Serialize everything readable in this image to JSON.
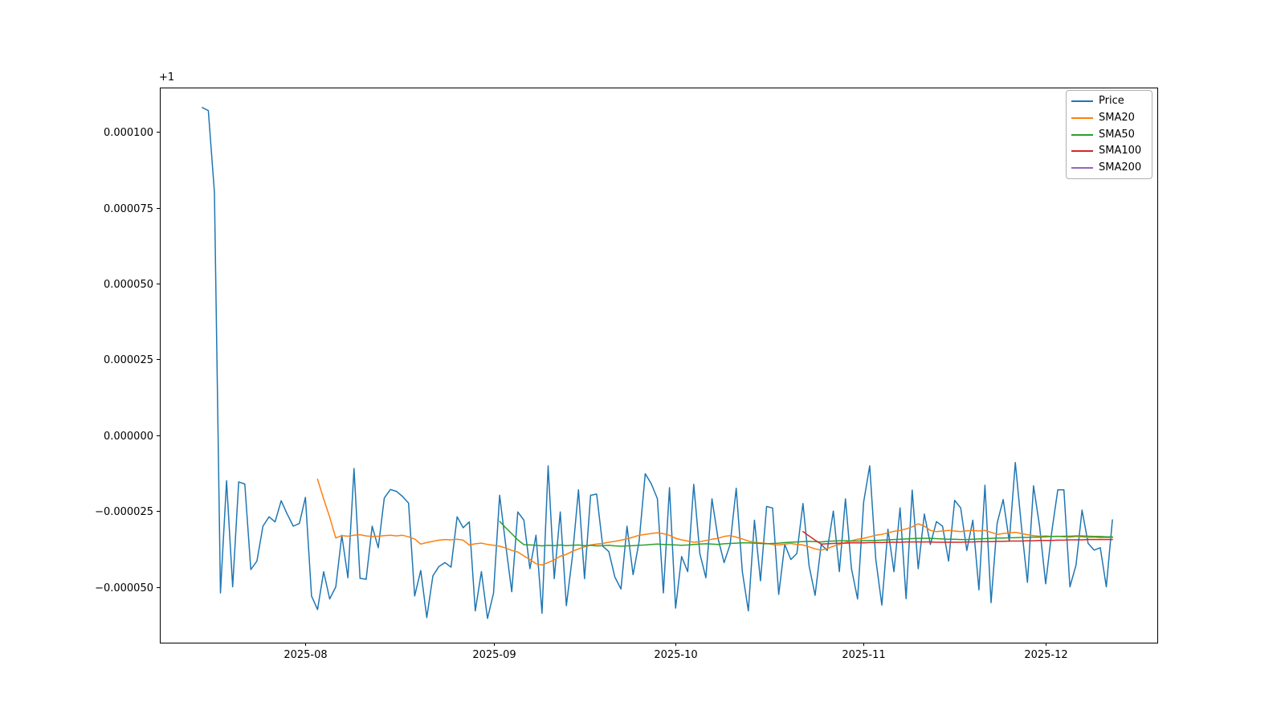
{
  "figure": {
    "background": "#ffffff",
    "offset_text": "+1"
  },
  "chart_data": {
    "type": "line",
    "title": "",
    "xlabel": "",
    "ylabel": "",
    "grid": false,
    "epoch": "2025-07-15",
    "xlim_days": [
      -7.0,
      157.4
    ],
    "ylim": [
      0.9999316,
      1.0001146
    ],
    "y_offset_label": "+1",
    "legend": {
      "position": "upper right",
      "entries": [
        "Price",
        "SMA20",
        "SMA50",
        "SMA100",
        "SMA200"
      ]
    },
    "x_axis": {
      "ticks": [
        {
          "date": "2025-08-01",
          "label": "2025-08"
        },
        {
          "date": "2025-09-01",
          "label": "2025-09"
        },
        {
          "date": "2025-10-01",
          "label": "2025-10"
        },
        {
          "date": "2025-11-01",
          "label": "2025-11"
        },
        {
          "date": "2025-12-01",
          "label": "2025-12"
        }
      ]
    },
    "y_axis": {
      "ticks": [
        {
          "value": 1.0001,
          "label": "0.000100"
        },
        {
          "value": 1.000075,
          "label": "0.000075"
        },
        {
          "value": 1.00005,
          "label": "0.000050"
        },
        {
          "value": 1.000025,
          "label": "0.000025"
        },
        {
          "value": 1.0,
          "label": "0.000000"
        },
        {
          "value": 0.999975,
          "label": "−0.000025"
        },
        {
          "value": 0.99995,
          "label": "−0.000050"
        }
      ]
    },
    "series": [
      {
        "name": "Price",
        "color": "#1f77b4",
        "start_date": "2025-07-15",
        "frequency": "daily",
        "values": [
          1.000108,
          1.000107,
          1.00008,
          0.999948,
          0.999985,
          0.99995,
          0.9999846,
          0.9999839,
          0.9999557,
          0.9999585,
          0.99997,
          0.9999731,
          0.9999714,
          0.9999784,
          0.999974,
          0.99997,
          0.9999709,
          0.9999795,
          0.999947,
          0.9999425,
          0.999955,
          0.999946,
          0.99995,
          0.999967,
          0.999953,
          0.999989,
          0.9999528,
          0.9999525,
          0.99997,
          0.9999629,
          0.9999793,
          0.9999821,
          0.9999815,
          0.9999798,
          0.9999776,
          0.999947,
          0.9999554,
          0.9999399,
          0.9999536,
          0.9999567,
          0.999958,
          0.9999565,
          0.9999731,
          0.9999695,
          0.9999714,
          0.9999421,
          0.999955,
          0.9999396,
          0.9999479,
          0.9999802,
          0.999964,
          0.9999484,
          0.9999747,
          0.999972,
          0.999956,
          0.999967,
          0.9999413,
          0.9999899,
          0.9999527,
          0.9999747,
          0.9999438,
          0.99996,
          0.999982,
          0.9999527,
          0.9999802,
          0.9999806,
          0.9999634,
          0.9999616,
          0.9999532,
          0.9999493,
          0.99997,
          0.999954,
          0.999965,
          0.9999873,
          0.999984,
          0.9999791,
          0.999948,
          0.9999827,
          0.999943,
          0.99996,
          0.999955,
          0.9999838,
          0.999961,
          0.999953,
          0.999979,
          0.999966,
          0.999958,
          0.999964,
          0.9999825,
          0.999955,
          0.9999421,
          0.999972,
          0.999952,
          0.9999765,
          0.999976,
          0.9999475,
          0.999964,
          0.999959,
          0.999961,
          0.9999775,
          0.999957,
          0.9999472,
          0.999964,
          0.999962,
          0.999975,
          0.999955,
          0.999979,
          0.999956,
          0.999946,
          0.999978,
          0.9999899,
          0.999959,
          0.999944,
          0.999969,
          0.999955,
          0.999976,
          0.9999461,
          0.9999819,
          0.999956,
          0.999974,
          0.999964,
          0.9999715,
          0.99997,
          0.9999585,
          0.9999785,
          0.999976,
          0.999962,
          0.999972,
          0.999949,
          0.9999835,
          0.9999448,
          0.999971,
          0.9999788,
          0.999965,
          0.999991,
          0.99997,
          0.9999515,
          0.9999833,
          0.99997,
          0.999951,
          0.999968,
          0.999982,
          0.999982,
          0.99995,
          0.9999572,
          0.9999753,
          0.9999643,
          0.9999621,
          0.9999629,
          0.99995,
          0.9999721
        ]
      },
      {
        "name": "SMA20",
        "color": "#ff7f0e",
        "start_date": "2025-08-03",
        "frequency": "daily",
        "values": [
          0.9999855,
          0.999979,
          0.999973,
          0.9999661,
          0.9999669,
          0.9999667,
          0.999967,
          0.9999672,
          0.9999668,
          0.9999666,
          0.9999667,
          0.9999669,
          0.999967,
          0.9999668,
          0.999967,
          0.9999665,
          0.9999658,
          0.9999641,
          0.9999646,
          0.999965,
          0.9999654,
          0.9999656,
          0.9999655,
          0.9999657,
          0.9999654,
          0.9999638,
          0.9999642,
          0.9999644,
          0.999964,
          0.9999637,
          0.9999634,
          0.9999628,
          0.999962,
          0.9999615,
          0.9999602,
          0.999959,
          0.9999576,
          0.9999572,
          0.999958,
          0.9999589,
          0.9999601,
          0.9999607,
          0.9999617,
          0.9999625,
          0.9999632,
          0.9999638,
          0.9999641,
          0.9999643,
          0.9999647,
          0.999965,
          0.9999654,
          0.9999658,
          0.9999664,
          0.999967,
          0.9999673,
          0.9999676,
          0.9999678,
          0.9999675,
          0.999967,
          0.999966,
          0.9999655,
          0.9999651,
          0.9999647,
          0.9999649,
          0.9999653,
          0.9999657,
          0.999966,
          0.9999666,
          0.9999669,
          0.9999664,
          0.9999658,
          0.9999651,
          0.9999647,
          0.9999645,
          0.9999643,
          0.999964,
          0.9999638,
          0.9999641,
          0.9999643,
          0.999964,
          0.9999638,
          0.9999632,
          0.9999625,
          0.9999621,
          0.9999626,
          0.9999634,
          0.999964,
          0.9999646,
          0.9999652,
          0.9999657,
          0.999966,
          0.9999665,
          0.999967,
          0.9999673,
          0.9999678,
          0.9999683,
          0.9999686,
          0.9999691,
          0.9999698,
          0.9999708,
          0.99997,
          0.9999686,
          0.9999682,
          0.9999684,
          0.9999686,
          0.9999684,
          0.9999682,
          0.9999685,
          0.9999686,
          0.9999684,
          0.9999686,
          0.999968,
          0.9999673,
          0.9999676,
          0.9999678,
          0.999968,
          0.9999676,
          0.9999672,
          0.9999669,
          0.9999667,
          0.9999668,
          0.9999666,
          0.9999667,
          0.9999665,
          0.9999664,
          0.9999666,
          0.9999665,
          0.9999663,
          0.9999664,
          0.9999662,
          0.9999663,
          0.9999662
        ]
      },
      {
        "name": "SMA50",
        "color": "#2ca02c",
        "start_date": "2025-09-02",
        "frequency": "daily",
        "values": [
          0.9999716,
          0.9999695,
          0.9999675,
          0.9999655,
          0.9999639,
          0.9999638,
          0.9999637,
          0.9999635,
          0.9999637,
          0.9999636,
          0.9999638,
          0.9999636,
          0.9999637,
          0.9999638,
          0.9999636,
          0.9999637,
          0.9999635,
          0.9999636,
          0.9999637,
          0.9999635,
          0.9999634,
          0.9999635,
          0.9999636,
          0.9999637,
          0.9999638,
          0.999964,
          0.9999641,
          0.999964,
          0.9999639,
          0.9999638,
          0.9999637,
          0.9999638,
          0.999964,
          0.9999641,
          0.9999642,
          0.9999641,
          0.999964,
          0.9999642,
          0.9999643,
          0.9999644,
          0.9999645,
          0.9999645,
          0.9999644,
          0.9999643,
          0.9999642,
          0.9999643,
          0.9999644,
          0.9999646,
          0.9999647,
          0.9999648,
          0.9999649,
          0.999965,
          0.9999649,
          0.9999648,
          0.999965,
          0.9999651,
          0.9999652,
          0.9999652,
          0.9999651,
          0.9999651,
          0.9999652,
          0.9999653,
          0.9999653,
          0.9999654,
          0.9999655,
          0.9999656,
          0.9999657,
          0.9999658,
          0.9999659,
          0.999966,
          0.999966,
          0.999966,
          0.9999659,
          0.9999658,
          0.9999657,
          0.9999657,
          0.9999656,
          0.9999656,
          0.9999657,
          0.9999658,
          0.9999659,
          0.999966,
          0.9999661,
          0.9999661,
          0.9999662,
          0.9999662,
          0.9999663,
          0.9999663,
          0.9999664,
          0.9999664,
          0.9999665,
          0.9999666,
          0.9999666,
          0.9999667,
          0.9999667,
          0.9999668,
          0.9999668,
          0.9999667,
          0.9999666,
          0.9999666,
          0.9999665,
          0.9999665
        ]
      },
      {
        "name": "SMA100",
        "color": "#d62728",
        "start_date": "2025-10-22",
        "frequency": "daily",
        "values": [
          0.9999682,
          0.9999668,
          0.9999654,
          0.9999641,
          0.9999642,
          0.9999643,
          0.9999644,
          0.9999644,
          0.9999645,
          0.9999645,
          0.9999645,
          0.9999646,
          0.9999646,
          0.9999646,
          0.9999647,
          0.9999647,
          0.9999647,
          0.9999648,
          0.9999648,
          0.9999648,
          0.9999648,
          0.9999648,
          0.9999647,
          0.9999647,
          0.9999647,
          0.9999647,
          0.9999647,
          0.9999648,
          0.9999648,
          0.9999649,
          0.9999649,
          0.9999649,
          0.999965,
          0.999965,
          0.9999651,
          0.9999651,
          0.9999651,
          0.9999652,
          0.9999652,
          0.9999653,
          0.9999653,
          0.9999653,
          0.9999654,
          0.9999654,
          0.9999655,
          0.9999655,
          0.9999655,
          0.9999656,
          0.9999656,
          0.9999656,
          0.9999656,
          0.9999656
        ]
      },
      {
        "name": "SMA200",
        "color": "#9467bd",
        "start_date": null,
        "frequency": "daily",
        "values": []
      }
    ]
  }
}
